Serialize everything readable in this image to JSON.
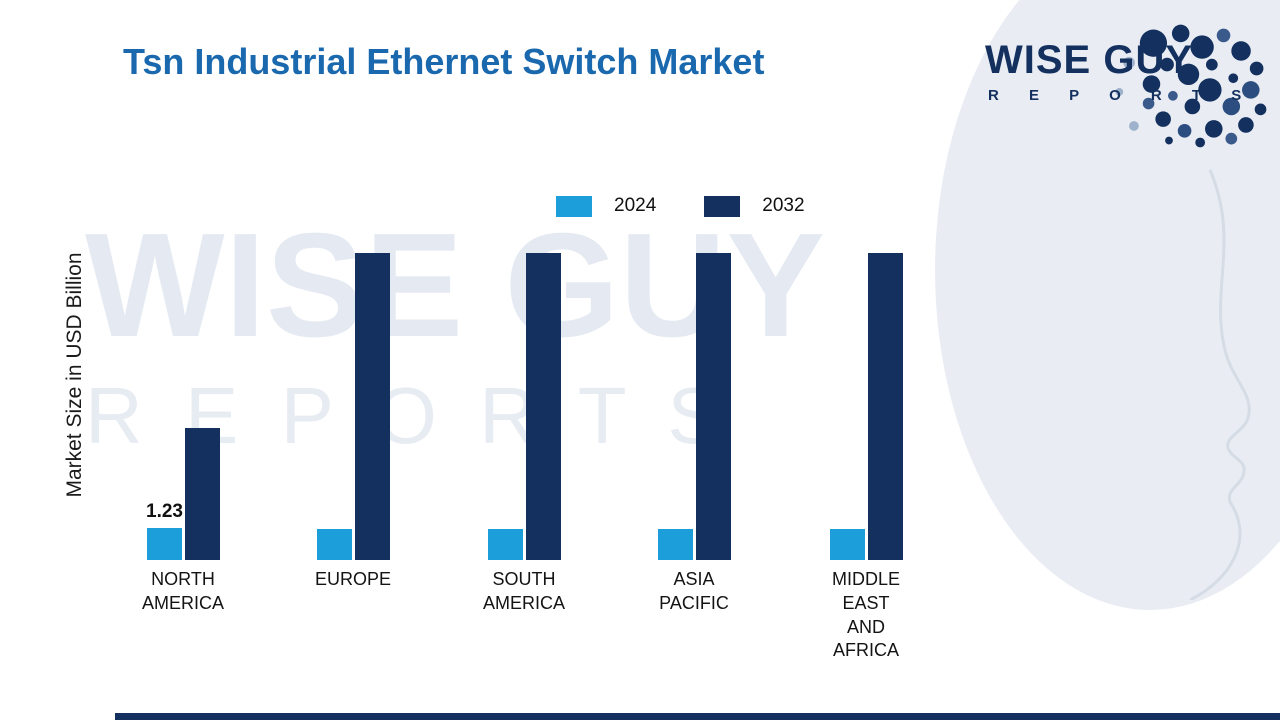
{
  "title": "Tsn Industrial Ethernet Switch Market",
  "logo": {
    "line1": "WISE GUY",
    "line2": "R E P O R T S"
  },
  "watermark": {
    "line1": "WISE GUY",
    "line2": "R E P O R T S"
  },
  "colors": {
    "accent_blue": "#1b9ed9",
    "navy": "#14305f",
    "title_blue": "#1a68ad",
    "watermark_gray": "#ccd7e6"
  },
  "chart_data": {
    "type": "bar",
    "title": "Tsn Industrial Ethernet Switch Market",
    "ylabel": "Market Size in USD Billion",
    "xlabel": "",
    "categories": [
      "NORTH AMERICA",
      "EUROPE",
      "SOUTH AMERICA",
      "ASIA PACIFIC",
      "MIDDLE EAST AND AFRICA"
    ],
    "series": [
      {
        "name": "2024",
        "color": "#1b9ed9",
        "values": [
          1.23,
          1.2,
          1.2,
          1.2,
          1.2
        ]
      },
      {
        "name": "2032",
        "color": "#14305f",
        "values": [
          5.1,
          11.9,
          11.9,
          11.9,
          11.9
        ]
      }
    ],
    "data_labels": [
      "1.23",
      "",
      "",
      "",
      ""
    ],
    "ylim": [
      0,
      12
    ],
    "grid": false,
    "legend_position": "top-center"
  }
}
